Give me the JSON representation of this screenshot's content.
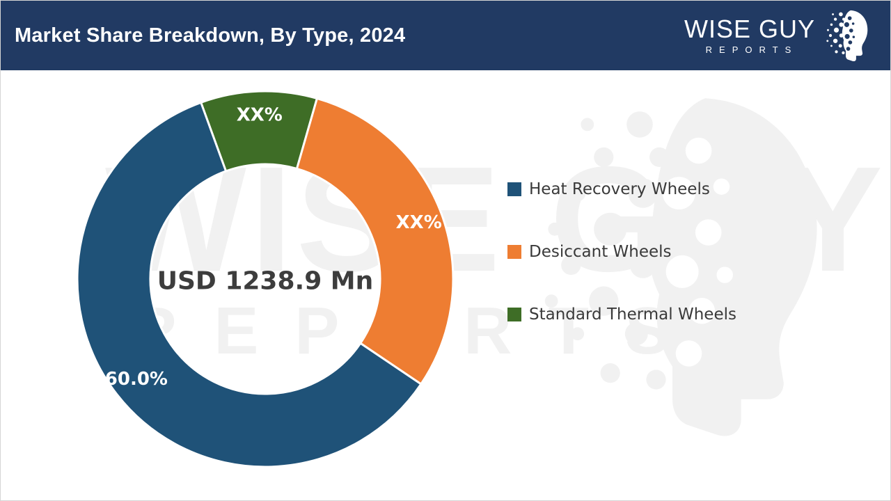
{
  "header": {
    "title": "Market Share Breakdown, By Type, 2024",
    "bg_color": "#213A63",
    "logo": {
      "line1": "WISE GUY",
      "line2": "REPORTS"
    }
  },
  "chart_data": {
    "type": "donut",
    "title": "Market Share Breakdown, By Type, 2024",
    "center_label": "USD 1238.9 Mn",
    "start_angle_deg": -20,
    "outer_radius_px": 270,
    "inner_radius_px": 165,
    "segments": [
      {
        "label": "Standard Thermal Wheels",
        "value_pct": 10,
        "display_label": "XX%",
        "color": "#3E6D26"
      },
      {
        "label": "Desiccant Wheels",
        "value_pct": 30,
        "display_label": "XX%",
        "color": "#EE7D32"
      },
      {
        "label": "Heat Recovery Wheels",
        "value_pct": 60,
        "display_label": "60.0%",
        "color": "#1F5278"
      }
    ],
    "legend_position": "right",
    "legend": [
      {
        "label": "Heat Recovery Wheels",
        "color": "#1F5278"
      },
      {
        "label": "Desiccant Wheels",
        "color": "#EE7D32"
      },
      {
        "label": "Standard Thermal Wheels",
        "color": "#3E6D26"
      }
    ]
  },
  "watermark": {
    "line1": "WISE GUY",
    "line2": "REPORTS",
    "color": "#F1F1F1"
  }
}
